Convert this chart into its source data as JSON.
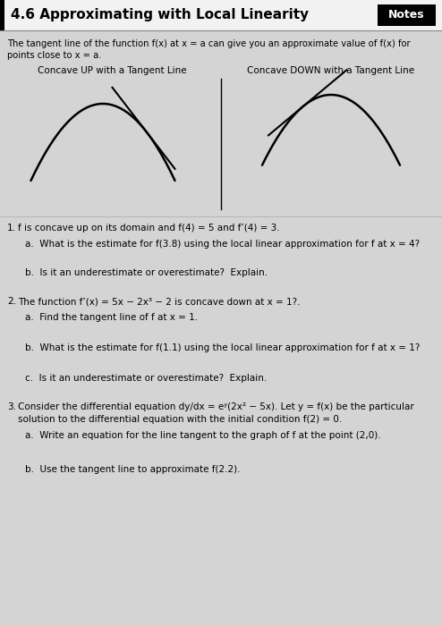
{
  "title": "4.6 Approximating with Local Linearity",
  "notes_label": "Notes",
  "intro_line1": "The tangent line of the function f(x) at x = a can give you an approximate value of f(x) for",
  "intro_line2": "points close to x = a.",
  "concave_up_label": "Concave UP with a Tangent Line",
  "concave_down_label": "Concave DOWN with a Tangent Line",
  "q1_text": "f is concave up on its domain and f(4) = 5 and f’(4) = 3.",
  "q1a": "a.  What is the estimate for f(3.8) using the local linear approximation for f at x = 4?",
  "q1b": "b.  Is it an underestimate or overestimate?  Explain.",
  "q2_text": "The function f’(x) = 5x − 2x³ − 2 is concave down at x = 1?.",
  "q2a": "a.  Find the tangent line of f at x = 1.",
  "q2b": "b.  What is the estimate for f(1.1) using the local linear approximation for f at x = 1?",
  "q2c": "c.  Is it an underestimate or overestimate?  Explain.",
  "q3_text1": "Consider the differential equation dy/dx = eʸ(2x² − 5x). Let y = f(x) be the particular",
  "q3_text2": "solution to the differential equation with the initial condition f(2) = 0.",
  "q3a": "a.  Write an equation for the line tangent to the graph of f at the point (2,0).",
  "q3b": "b.  Use the tangent line to approximate f(2.2).",
  "bg_color": "#d4d4d4",
  "title_bg": "#f0f0f0",
  "notes_bg": "#000000",
  "body_bg": "#d4d4d4",
  "text_color": "#000000",
  "notes_text_color": "#ffffff"
}
